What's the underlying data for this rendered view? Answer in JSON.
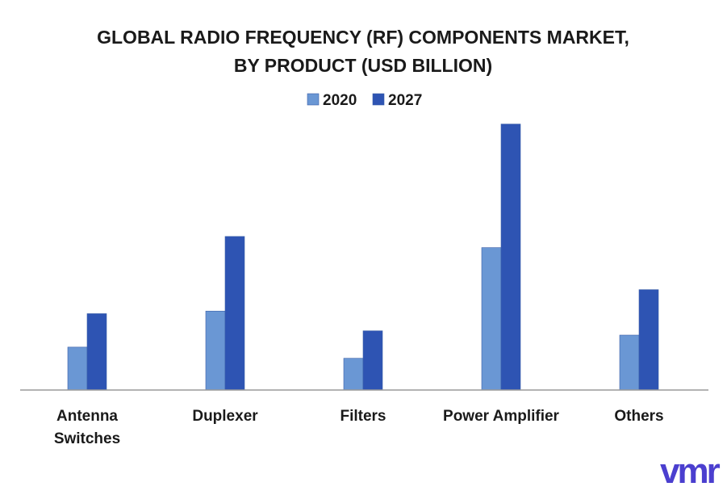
{
  "chart_data": {
    "type": "bar",
    "title_lines": [
      "GLOBAL RADIO FREQUENCY (RF) COMPONENTS MARKET,",
      "BY PRODUCT (USD BILLION)"
    ],
    "categories": [
      [
        "Antenna",
        "Switches"
      ],
      [
        "Duplexer"
      ],
      [
        "Filters"
      ],
      [
        "Power Amplifier"
      ],
      [
        "Others"
      ]
    ],
    "series": [
      {
        "name": "2020",
        "color": "#6a97d4",
        "values": [
          5.0,
          9.2,
          3.7,
          16.6,
          6.4
        ]
      },
      {
        "name": "2027",
        "color": "#2e54b3",
        "values": [
          8.9,
          17.9,
          6.9,
          31.0,
          11.7
        ]
      }
    ],
    "ylim": [
      0,
      32
    ],
    "grid": false,
    "legend_position": "top-center",
    "axis_color": "#9a9a9a"
  },
  "brand": {
    "logo_text": "vmr",
    "color": "#4b3fcf"
  }
}
